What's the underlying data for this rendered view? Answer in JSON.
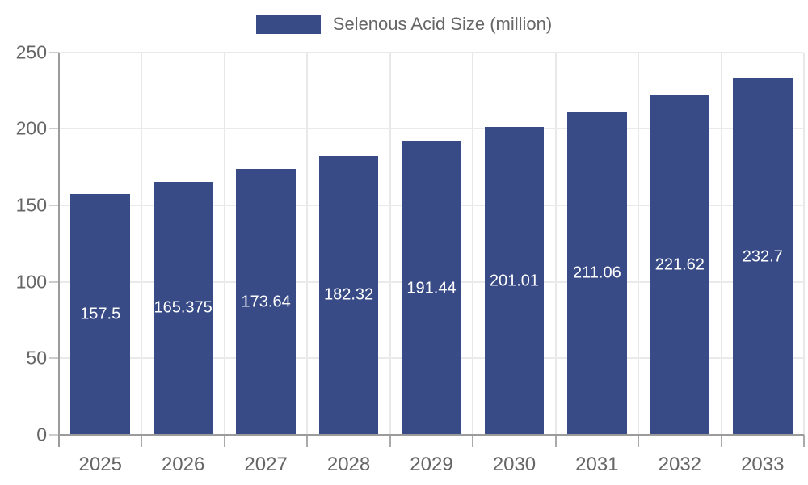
{
  "legend": {
    "label": "Selenous Acid Size (million)"
  },
  "chart_data": {
    "type": "bar",
    "title": "Selenous Acid Size (million)",
    "categories": [
      "2025",
      "2026",
      "2027",
      "2028",
      "2029",
      "2030",
      "2031",
      "2032",
      "2033"
    ],
    "series": [
      {
        "name": "Selenous Acid Size (million)",
        "values": [
          157.5,
          165.375,
          173.64,
          182.32,
          191.44,
          201.01,
          211.06,
          221.62,
          232.7
        ]
      }
    ],
    "value_labels": [
      "157.5",
      "165.375",
      "173.64",
      "182.32",
      "191.44",
      "201.01",
      "211.06",
      "221.62",
      "232.7"
    ],
    "xlabel": "",
    "ylabel": "",
    "ylim": [
      0,
      250
    ],
    "yticks": [
      0,
      50,
      100,
      150,
      200,
      250
    ],
    "grid": true,
    "legend_position": "top-center",
    "colors": {
      "bar": "#384b86",
      "grid": "#eaeaea",
      "axis": "#9b9b9b",
      "text": "#666666",
      "value_label": "#ffffff",
      "background": "#ffffff"
    }
  }
}
